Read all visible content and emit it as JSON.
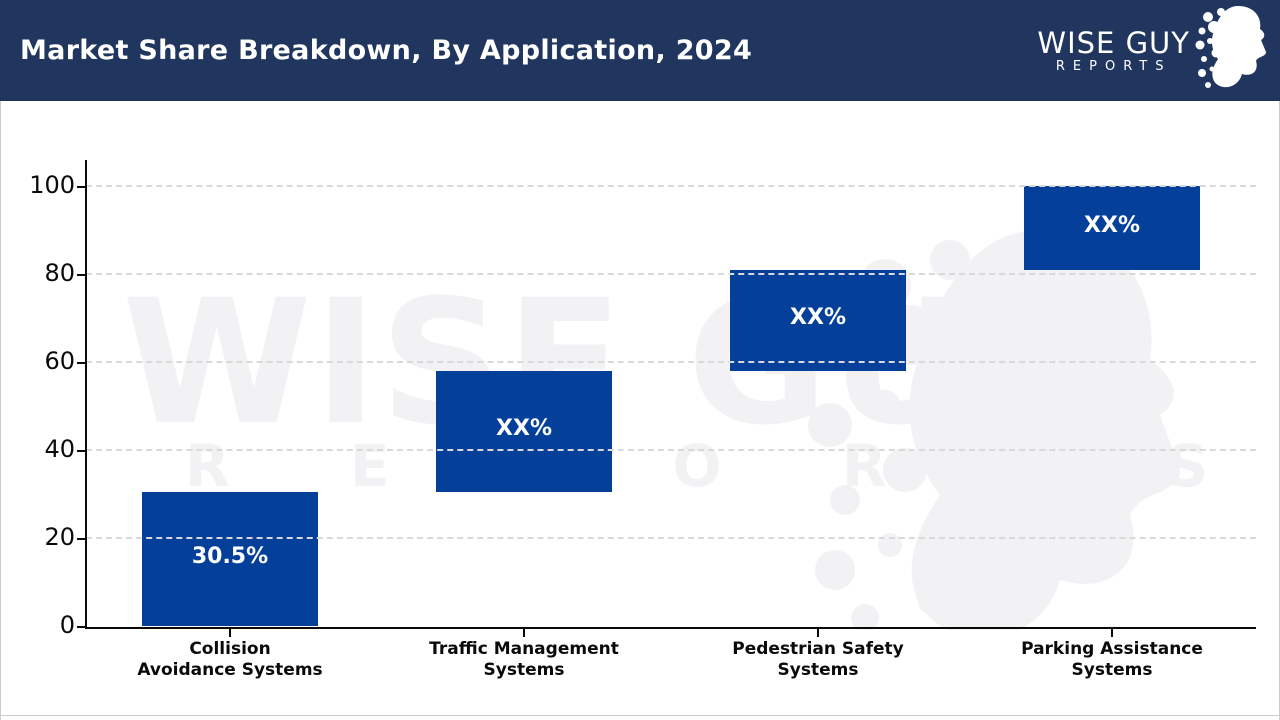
{
  "header": {
    "title": "Market Share Breakdown, By Application, 2024",
    "bg_color": "#21365f",
    "logo": {
      "line1": "WISE GUY",
      "line2": "REPORTS"
    }
  },
  "watermark": {
    "line1": "WISE GUY",
    "line2": "REPORTS"
  },
  "chart_data": {
    "type": "bar",
    "subtype": "stacked-waterfall",
    "title": "Market Share Breakdown, By Application, 2024",
    "categories": [
      [
        "Collision",
        "Avoidance Systems"
      ],
      [
        "Traffic Management",
        "Systems"
      ],
      [
        "Pedestrian Safety",
        "Systems"
      ],
      [
        "Parking Assistance",
        "Systems"
      ]
    ],
    "bars": [
      {
        "start": 0,
        "end": 30.5,
        "value_label": "30.5%"
      },
      {
        "start": 30.5,
        "end": 58,
        "value_label": "XX%"
      },
      {
        "start": 58,
        "end": 81,
        "value_label": "XX%"
      },
      {
        "start": 81,
        "end": 100,
        "value_label": "XX%"
      }
    ],
    "y_ticks": [
      0,
      20,
      40,
      60,
      80,
      100
    ],
    "ylim": [
      0,
      106
    ],
    "xlabel": "",
    "ylabel": "",
    "legend": "none",
    "grid": "horizontal-dashed",
    "bar_color": "#04409a",
    "gridline_color": "#d9d9d9"
  }
}
